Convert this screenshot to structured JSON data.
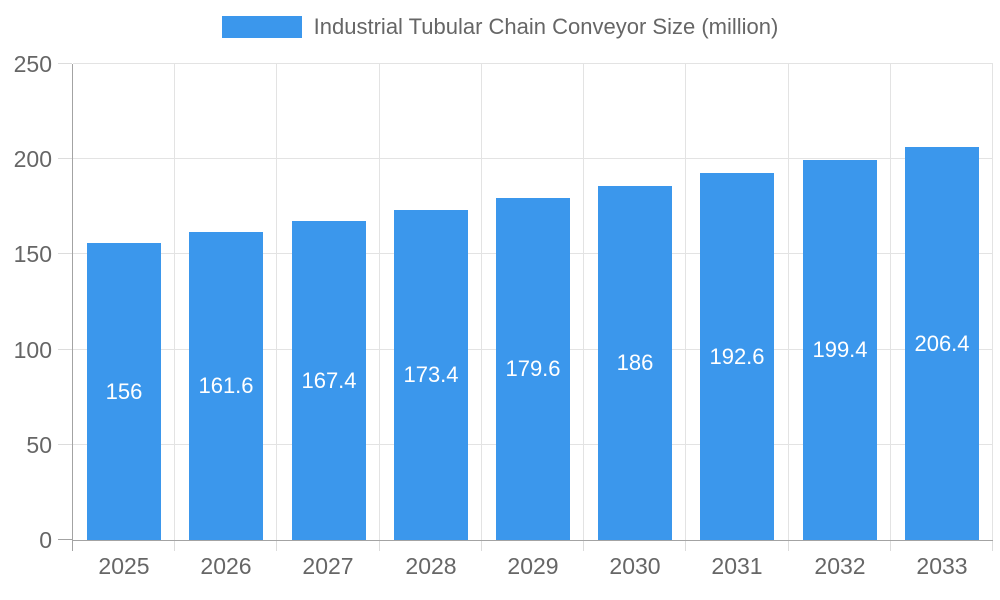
{
  "legend": {
    "label": "Industrial Tubular Chain Conveyor Size (million)"
  },
  "chart_data": {
    "type": "bar",
    "title": "Industrial Tubular Chain Conveyor Size (million)",
    "categories": [
      "2025",
      "2026",
      "2027",
      "2028",
      "2029",
      "2030",
      "2031",
      "2032",
      "2033"
    ],
    "values": [
      156,
      161.6,
      167.4,
      173.4,
      179.6,
      186,
      192.6,
      199.4,
      206.4
    ],
    "xlabel": "",
    "ylabel": "",
    "ylim": [
      0,
      250
    ],
    "yticks": [
      0,
      50,
      100,
      150,
      200,
      250
    ],
    "grid": true,
    "legend_position": "top",
    "bar_color": "#3b97ec",
    "bar_label_color": "#ffffff",
    "grid_color": "#e3e3e3",
    "axis_color": "#a3a3a3",
    "tick_label_color": "#666666"
  }
}
